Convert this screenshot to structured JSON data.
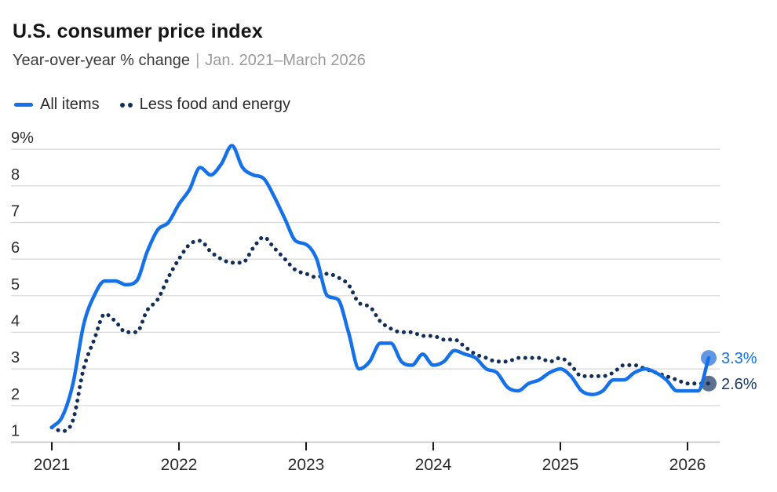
{
  "header": {
    "title": "U.S. consumer price index",
    "subtitle": "Year-over-year % change",
    "separator": "|",
    "date_range": "Jan. 2021–March 2026"
  },
  "legend": [
    {
      "label": "All items",
      "swatch": "solid-line"
    },
    {
      "label": "Less food and energy",
      "swatch": "dots"
    }
  ],
  "colors": {
    "all_items_line": "#1571e8",
    "all_items_end_dot": "#6197e3",
    "core_line": "#132e57",
    "core_end_dot": "#5c7090",
    "gridline": "#d5d5d5",
    "baseline": "#c3c3c3",
    "tick_mark": "#1a1a1a",
    "axis_text": "#2b2b2b",
    "end_label_all_items": "#1571e8",
    "end_label_core": "#17365e"
  },
  "chart_data": {
    "type": "line",
    "title": "U.S. consumer price index",
    "subtitle": "Year-over-year % change | Jan. 2021–March 2026",
    "x_unit": "month",
    "x_start": "Jan 2021",
    "x_end": "March 2026",
    "x_tick_labels": [
      "2021",
      "2022",
      "2023",
      "2024",
      "2025",
      "2026"
    ],
    "x_tick_month_indexes": [
      0,
      12,
      24,
      36,
      48,
      60
    ],
    "y_tick_values": [
      1,
      2,
      3,
      4,
      5,
      6,
      7,
      8,
      9
    ],
    "y_tick_labels": [
      "1",
      "2",
      "3",
      "4",
      "5",
      "6",
      "7",
      "8",
      "9%"
    ],
    "ylim": [
      1,
      9.35
    ],
    "grid": "horizontal",
    "legend_position": "top-left",
    "series": [
      {
        "name": "All items",
        "style": "solid",
        "end_label": "3.3%",
        "values": [
          1.4,
          1.7,
          2.6,
          4.2,
          5.0,
          5.4,
          5.4,
          5.3,
          5.4,
          6.2,
          6.8,
          7.0,
          7.5,
          7.9,
          8.5,
          8.3,
          8.6,
          9.1,
          8.5,
          8.3,
          8.2,
          7.7,
          7.1,
          6.5,
          6.4,
          6.0,
          5.0,
          4.9,
          4.0,
          3.0,
          3.2,
          3.7,
          3.7,
          3.2,
          3.1,
          3.4,
          3.1,
          3.2,
          3.5,
          3.4,
          3.3,
          3.0,
          2.9,
          2.5,
          2.4,
          2.6,
          2.7,
          2.9,
          3.0,
          2.8,
          2.4,
          2.3,
          2.4,
          2.7,
          2.7,
          2.9,
          3.0,
          2.9,
          2.7,
          2.4,
          2.4,
          2.4,
          3.3
        ]
      },
      {
        "name": "Less food and energy",
        "style": "dotted",
        "end_label": "2.6%",
        "values": [
          1.4,
          1.3,
          1.6,
          3.0,
          3.8,
          4.5,
          4.3,
          4.0,
          4.0,
          4.6,
          4.9,
          5.5,
          6.0,
          6.4,
          6.5,
          6.2,
          6.0,
          5.9,
          5.9,
          6.3,
          6.6,
          6.3,
          6.0,
          5.7,
          5.6,
          5.5,
          5.6,
          5.5,
          5.3,
          4.8,
          4.7,
          4.3,
          4.1,
          4.0,
          4.0,
          3.9,
          3.9,
          3.8,
          3.8,
          3.6,
          3.4,
          3.3,
          3.2,
          3.2,
          3.3,
          3.3,
          3.3,
          3.2,
          3.3,
          3.1,
          2.8,
          2.8,
          2.8,
          2.9,
          3.1,
          3.1,
          3.0,
          2.9,
          2.8,
          2.7,
          2.6,
          2.6,
          2.6
        ]
      }
    ]
  }
}
